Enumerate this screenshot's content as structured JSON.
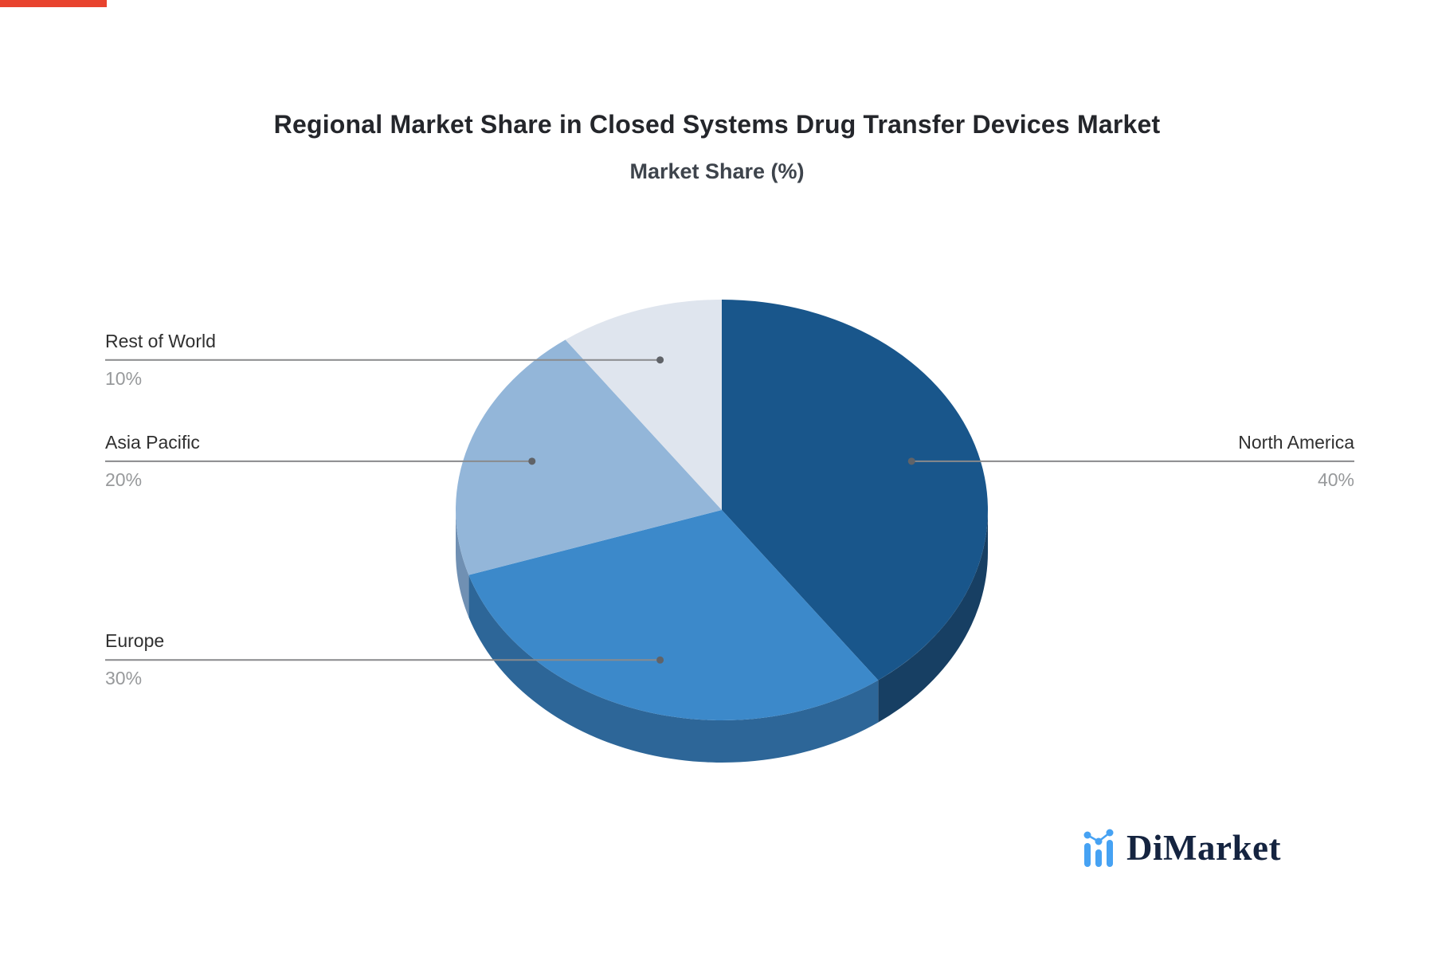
{
  "chart_data": {
    "type": "pie",
    "style_3d": true,
    "title": "Regional Market Share in Closed Systems Drug Transfer Devices Market",
    "subtitle": "Market Share (%)",
    "unit": "%",
    "categories": [
      "North America",
      "Europe",
      "Asia Pacific",
      "Rest of World"
    ],
    "values": [
      40,
      30,
      20,
      10
    ],
    "percent_labels": [
      "40%",
      "30%",
      "20%",
      "10%"
    ],
    "start_angle_deg": 0,
    "direction": "clockwise",
    "slice_colors": [
      "#19568b",
      "#3c89ca",
      "#93b6d9",
      "#dfe5ee"
    ],
    "slice_side_colors": [
      "#173f63",
      "#2d6698",
      "#7090b3",
      "#b9c5d6"
    ],
    "legend": "none",
    "label_style": "callout line with category name above and percent below"
  },
  "branding": {
    "logo_text": "DiMarket",
    "logo_icon": "bar-chart-icon",
    "logo_icon_color": "#46a2f3",
    "logo_text_color": "#152440"
  },
  "colors": {
    "background": "#ffffff",
    "title": "#24262b",
    "subtitle": "#3e444c",
    "label_text": "#303030",
    "percent_text": "#97999b",
    "callout_line": "#898a8c",
    "callout_dot": "#606368",
    "accent_bar": "#e8432e"
  }
}
